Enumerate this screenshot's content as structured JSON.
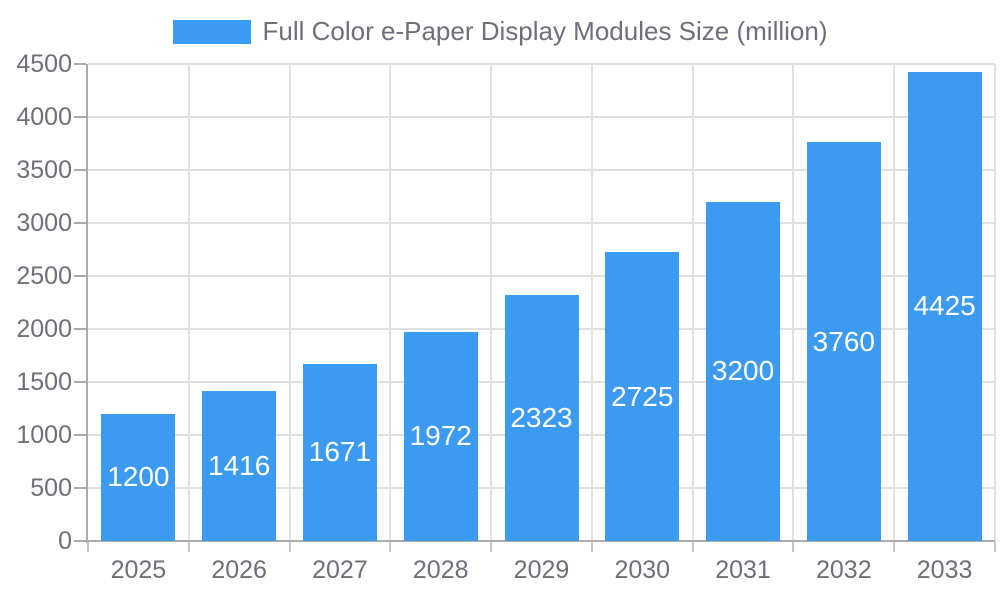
{
  "legend": {
    "label": "Full Color e-Paper Display Modules Size (million)"
  },
  "colors": {
    "bar": "#3C9AF0",
    "bar_label": "#FFFFFF",
    "axis_text": "#6E7079",
    "axis_line": "#ABABAB",
    "tick_line": "#C6C6C6",
    "grid_line": "#E0E0E0",
    "background": "#FFFFFF"
  },
  "chart_data": {
    "type": "bar",
    "title": "Full Color e-Paper Display Modules Size (million)",
    "categories": [
      "2025",
      "2026",
      "2027",
      "2028",
      "2029",
      "2030",
      "2031",
      "2032",
      "2033"
    ],
    "values": [
      1200,
      1416,
      1671,
      1972,
      2323,
      2725,
      3200,
      3760,
      4425
    ],
    "y_ticks": [
      0,
      500,
      1000,
      1500,
      2000,
      2500,
      3000,
      3500,
      4000,
      4500
    ],
    "ylim": [
      0,
      4500
    ],
    "xlabel": "",
    "ylabel": "",
    "grid": true,
    "legend_position": "top",
    "bar_label_position": "inside-center"
  }
}
